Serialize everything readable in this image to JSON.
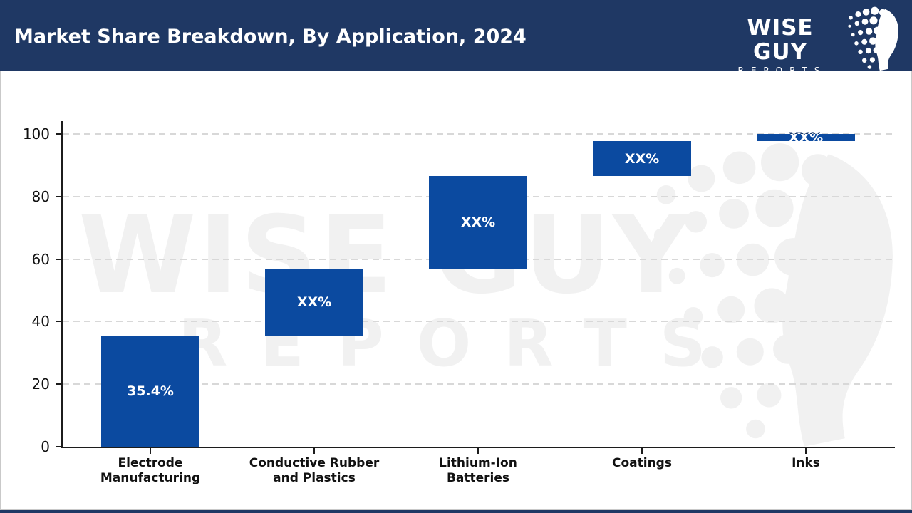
{
  "header": {
    "title": "Market Share Breakdown, By Application, 2024",
    "logo": {
      "wordmark": "WISE GUY",
      "subtext": "REPORTS"
    }
  },
  "watermark": {
    "line1": "WISE GUY",
    "line2": "REPORTS"
  },
  "colors": {
    "header_bg": "#1f3864",
    "footer_bg": "#1f3864",
    "panel_border": "#c9c9c9",
    "bar": "#0b4aa0",
    "bar_label": "#ffffff",
    "bar_label_overflow_dark": "#17396d",
    "grid": "#d8d8d8",
    "axis": "#1c1c1c",
    "tick_text": "#111111",
    "watermark": "#f1f1f1"
  },
  "chart_data": {
    "type": "bar",
    "subtype": "waterfall",
    "title": "Market Share Breakdown, By Application, 2024",
    "categories": [
      [
        "Electrode",
        "Manufacturing"
      ],
      [
        "Conductive Rubber",
        "and Plastics"
      ],
      [
        "Lithium-Ion",
        "Batteries"
      ],
      [
        "Coatings"
      ],
      [
        "Inks"
      ]
    ],
    "segments": [
      {
        "start": 0,
        "end": 35.4,
        "label": "35.4%"
      },
      {
        "start": 35.4,
        "end": 57.0,
        "label": "XX%"
      },
      {
        "start": 57.0,
        "end": 86.5,
        "label": "XX%"
      },
      {
        "start": 86.5,
        "end": 97.7,
        "label": "XX%"
      },
      {
        "start": 97.7,
        "end": 100,
        "label": "XX%"
      }
    ],
    "xlabel": "",
    "ylabel": "",
    "ylim": [
      0,
      100
    ],
    "yticks": [
      0,
      20,
      40,
      60,
      80,
      100
    ],
    "grid": "horizontal-dashed",
    "legend": "none"
  }
}
